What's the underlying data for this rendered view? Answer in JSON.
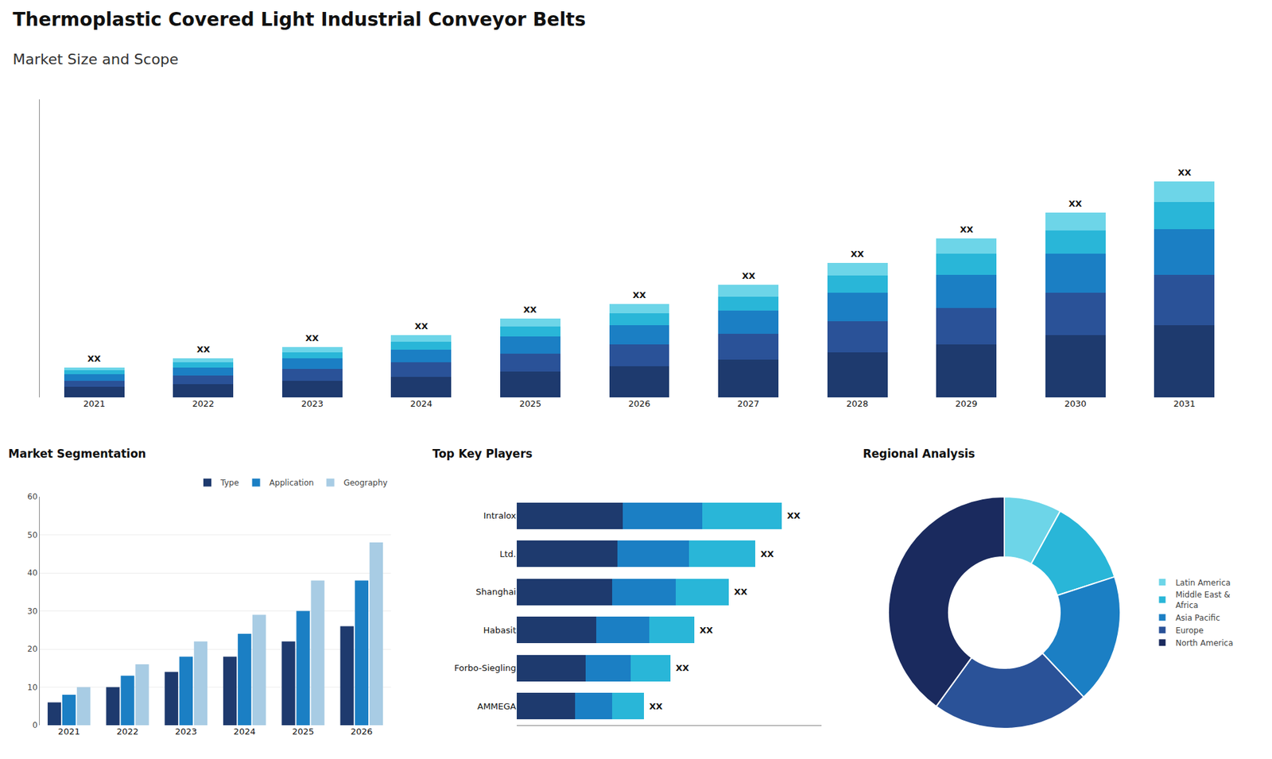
{
  "chart_data": [
    {
      "type": "bar",
      "stacked": true,
      "title": "Thermoplastic Covered Light Industrial Conveyor Belts",
      "subtitle": "Market Size and Scope",
      "categories": [
        "2021",
        "2022",
        "2023",
        "2024",
        "2025",
        "2026",
        "2027",
        "2028",
        "2029",
        "2030",
        "2031"
      ],
      "series": [
        {
          "color": "#1e3a6e",
          "values": [
            0.8,
            1.0,
            1.3,
            1.6,
            2.0,
            2.4,
            2.9,
            3.5,
            4.1,
            4.8,
            5.6
          ]
        },
        {
          "color": "#2a5298",
          "values": [
            0.5,
            0.7,
            0.9,
            1.1,
            1.4,
            1.7,
            2.0,
            2.4,
            2.8,
            3.3,
            3.9
          ]
        },
        {
          "color": "#1b7fc4",
          "values": [
            0.5,
            0.6,
            0.8,
            1.0,
            1.3,
            1.5,
            1.8,
            2.2,
            2.6,
            3.0,
            3.5
          ]
        },
        {
          "color": "#29b6d8",
          "values": [
            0.3,
            0.4,
            0.5,
            0.6,
            0.8,
            0.9,
            1.1,
            1.3,
            1.6,
            1.8,
            2.1
          ]
        },
        {
          "color": "#6dd5e8",
          "values": [
            0.2,
            0.3,
            0.4,
            0.5,
            0.6,
            0.7,
            0.9,
            1.0,
            1.2,
            1.4,
            1.6
          ]
        }
      ],
      "ylim": [
        0,
        23.046
      ],
      "tick_labels": "x",
      "grid": false,
      "annotations": [
        {
          "category": "2021",
          "text": "XX"
        },
        {
          "category": "2022",
          "text": "XX"
        },
        {
          "category": "2023",
          "text": "XX"
        },
        {
          "category": "2024",
          "text": "XX"
        },
        {
          "category": "2025",
          "text": "XX"
        },
        {
          "category": "2026",
          "text": "XX"
        },
        {
          "category": "2027",
          "text": "XX"
        },
        {
          "category": "2028",
          "text": "XX"
        },
        {
          "category": "2029",
          "text": "XX"
        },
        {
          "category": "2030",
          "text": "XX"
        },
        {
          "category": "2031",
          "text": "XX"
        }
      ]
    },
    {
      "type": "bar",
      "title": "Market Segmentation",
      "categories": [
        "2021",
        "2022",
        "2023",
        "2024",
        "2025",
        "2026"
      ],
      "series": [
        {
          "name": "Type",
          "color": "#1e3a6e",
          "values": [
            6,
            10,
            14,
            18,
            22,
            26
          ]
        },
        {
          "name": "Application",
          "color": "#1b7fc4",
          "values": [
            8,
            13,
            18,
            24,
            30,
            38
          ]
        },
        {
          "name": "Geography",
          "color": "#a8cce4",
          "values": [
            10,
            16,
            22,
            29,
            38,
            48
          ]
        }
      ],
      "ylim": [
        0,
        60
      ],
      "yticks": [
        0,
        10,
        20,
        30,
        40,
        50,
        60
      ],
      "grid": true,
      "legend": "top"
    },
    {
      "type": "bar",
      "orientation": "horizontal",
      "stacked": true,
      "title": "Top Key Players",
      "categories": [
        "Intralox",
        "Ltd.",
        "Shanghai",
        "Habasit",
        "Forbo-Siegling",
        "AMMEGA"
      ],
      "series": [
        {
          "color": "#1e3a6e",
          "values": [
            0.4,
            0.38,
            0.36,
            0.3,
            0.26,
            0.22
          ]
        },
        {
          "color": "#1b7fc4",
          "values": [
            0.3,
            0.27,
            0.24,
            0.2,
            0.17,
            0.14
          ]
        },
        {
          "color": "#29b6d8",
          "values": [
            0.3,
            0.25,
            0.2,
            0.17,
            0.15,
            0.12
          ]
        }
      ],
      "xlim": [
        0,
        1.15
      ],
      "tick_labels": "y",
      "grid": false,
      "annotations": [
        {
          "category": "Intralox",
          "text": "XX"
        },
        {
          "category": "Ltd.",
          "text": "XX"
        },
        {
          "category": "Shanghai",
          "text": "XX"
        },
        {
          "category": "Habasit",
          "text": "XX"
        },
        {
          "category": "Forbo-Siegling",
          "text": "XX"
        },
        {
          "category": "AMMEGA",
          "text": "XX"
        }
      ]
    },
    {
      "type": "pie",
      "title": "Regional Analysis",
      "categories": [
        "Latin America",
        "Middle East &\nAfrica",
        "Asia Pacific",
        "Europe",
        "North America"
      ],
      "values": [
        8,
        12,
        18,
        22,
        40
      ],
      "colors": [
        "#6dd5e8",
        "#29b6d8",
        "#1b7fc4",
        "#2a5298",
        "#1a2a5e"
      ],
      "legend": "right"
    }
  ]
}
